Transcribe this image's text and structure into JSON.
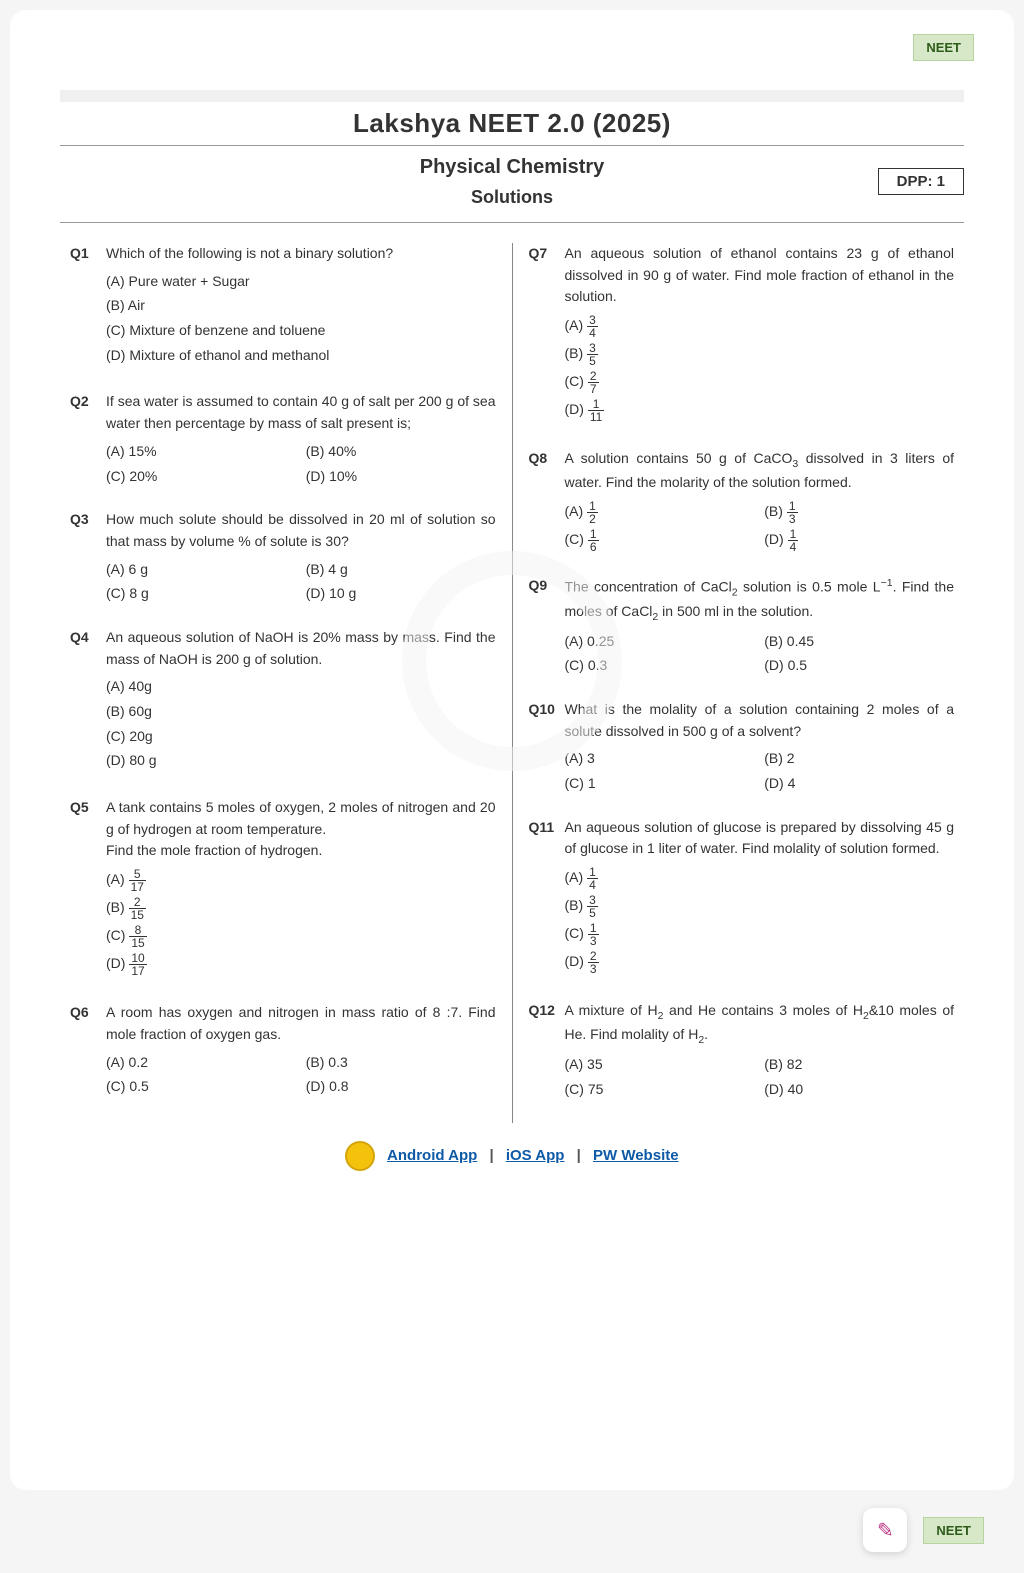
{
  "tag": "NEET",
  "title": "Lakshya NEET 2.0 (2025)",
  "subject": "Physical Chemistry",
  "topic": "Solutions",
  "dpp": "DPP: 1",
  "footer": {
    "android": "Android App",
    "ios": "iOS App",
    "web": "PW Website"
  },
  "edit_icon": "✎",
  "columns": [
    [
      {
        "num": "Q1",
        "text": "Which of the following is not a binary solution?",
        "layout": "1col",
        "options": [
          {
            "html": "(A) Pure water + Sugar"
          },
          {
            "html": "(B) Air"
          },
          {
            "html": "(C) Mixture of benzene and toluene"
          },
          {
            "html": "(D) Mixture of ethanol and methanol"
          }
        ]
      },
      {
        "num": "Q2",
        "text": "If sea water is assumed to contain 40 g of salt per 200 g of sea water then percentage by mass of salt present is;",
        "layout": "2col",
        "options": [
          {
            "html": "(A) 15%"
          },
          {
            "html": "(B) 40%"
          },
          {
            "html": "(C) 20%"
          },
          {
            "html": "(D) 10%"
          }
        ]
      },
      {
        "num": "Q3",
        "text": "How much solute should be dissolved in 20 ml of solution so that mass by volume % of solute is 30?",
        "layout": "2col",
        "options": [
          {
            "html": "(A) 6 g"
          },
          {
            "html": "(B) 4 g"
          },
          {
            "html": "(C) 8 g"
          },
          {
            "html": "(D) 10 g"
          }
        ]
      },
      {
        "num": "Q4",
        "text": "An aqueous solution of NaOH is 20% mass by mass. Find the mass of NaOH is 200 g of solution.",
        "layout": "1col",
        "options": [
          {
            "html": "(A) 40g"
          },
          {
            "html": "(B) 60g"
          },
          {
            "html": "(C) 20g"
          },
          {
            "html": "(D) 80 g"
          }
        ]
      },
      {
        "num": "Q5",
        "text": "A tank contains 5 moles of oxygen, 2 moles of nitrogen and 20 g of hydrogen at room temperature.<br>Find the mole fraction of hydrogen.",
        "layout": "1col",
        "options": [
          {
            "html": "(A) ",
            "frac": [
              "5",
              "17"
            ]
          },
          {
            "html": "(B) ",
            "frac": [
              "2",
              "15"
            ]
          },
          {
            "html": "(C) ",
            "frac": [
              "8",
              "15"
            ]
          },
          {
            "html": "(D) ",
            "frac": [
              "10",
              "17"
            ]
          }
        ]
      },
      {
        "num": "Q6",
        "text": "A room has oxygen and nitrogen in mass ratio of 8 :7. Find mole fraction of oxygen gas.",
        "layout": "2col",
        "options": [
          {
            "html": "(A) 0.2"
          },
          {
            "html": "(B) 0.3"
          },
          {
            "html": "(C) 0.5"
          },
          {
            "html": "(D) 0.8"
          }
        ]
      }
    ],
    [
      {
        "num": "Q7",
        "text": "An aqueous solution of ethanol contains 23 g of ethanol dissolved in 90 g of water. Find mole fraction of ethanol in the solution.",
        "layout": "1col",
        "options": [
          {
            "html": "(A) ",
            "frac": [
              "3",
              "4"
            ]
          },
          {
            "html": "(B) ",
            "frac": [
              "3",
              "5"
            ]
          },
          {
            "html": "(C) ",
            "frac": [
              "2",
              "7"
            ]
          },
          {
            "html": "(D) ",
            "frac": [
              "1",
              "11"
            ]
          }
        ]
      },
      {
        "num": "Q8",
        "text": "A solution contains 50 g of CaCO<sub>3</sub> dissolved in 3 liters of water. Find the molarity of the solution formed.",
        "layout": "2col",
        "options": [
          {
            "html": "(A) ",
            "frac": [
              "1",
              "2"
            ]
          },
          {
            "html": "(B) ",
            "frac": [
              "1",
              "3"
            ]
          },
          {
            "html": "(C) ",
            "frac": [
              "1",
              "6"
            ]
          },
          {
            "html": "(D) ",
            "frac": [
              "1",
              "4"
            ]
          }
        ]
      },
      {
        "num": "Q9",
        "text": "The concentration of CaCl<sub>2</sub> solution is 0.5 mole L<sup>−1</sup>. Find the moles of CaCl<sub>2</sub> in 500 ml in the solution.",
        "layout": "2col",
        "options": [
          {
            "html": "(A) 0.25"
          },
          {
            "html": "(B) 0.45"
          },
          {
            "html": "(C) 0.3"
          },
          {
            "html": "(D) 0.5"
          }
        ]
      },
      {
        "num": "Q10",
        "text": "What is the molality of a solution containing 2 moles of a solute dissolved in 500 g of a solvent?",
        "layout": "2col",
        "options": [
          {
            "html": "(A) 3"
          },
          {
            "html": "(B) 2"
          },
          {
            "html": "(C) 1"
          },
          {
            "html": "(D) 4"
          }
        ]
      },
      {
        "num": "Q11",
        "text": "An aqueous solution of glucose is prepared by dissolving 45 g of glucose in 1 liter of water. Find molality of solution formed.",
        "layout": "1col",
        "options": [
          {
            "html": "(A) ",
            "frac": [
              "1",
              "4"
            ]
          },
          {
            "html": "(B) ",
            "frac": [
              "3",
              "5"
            ]
          },
          {
            "html": "(C) ",
            "frac": [
              "1",
              "3"
            ]
          },
          {
            "html": "(D) ",
            "frac": [
              "2",
              "3"
            ]
          }
        ]
      },
      {
        "num": "Q12",
        "text": "A mixture of H<sub>2</sub> and He contains 3 moles of H<sub>2</sub>&amp;10 moles of He. Find molality of H<sub>2</sub>.",
        "layout": "2col",
        "options": [
          {
            "html": "(A) 35"
          },
          {
            "html": "(B) 82"
          },
          {
            "html": "(C) 75"
          },
          {
            "html": "(D) 40"
          }
        ]
      }
    ]
  ]
}
